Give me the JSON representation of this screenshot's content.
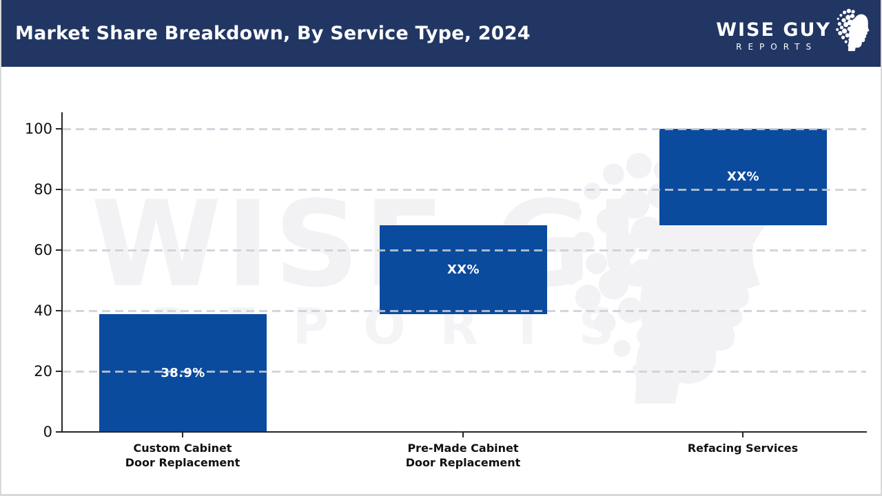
{
  "header": {
    "title": "Market Share Breakdown, By Service Type, 2024",
    "logo": {
      "line1": "WISE GUY",
      "line2": "REPORTS"
    }
  },
  "watermark": {
    "line1": "WISE GUY",
    "line2": "REPORTS"
  },
  "chart_data": {
    "type": "bar",
    "subtype": "waterfall",
    "title": "Market Share Breakdown, By Service Type, 2024",
    "categories": [
      {
        "line1": "Custom Cabinet",
        "line2": "Door Replacement"
      },
      {
        "line1": "Pre-Made Cabinet",
        "line2": "Door Replacement"
      },
      {
        "line1": "Refacing Services",
        "line2": ""
      }
    ],
    "segments": [
      {
        "start": 0,
        "end": 38.9,
        "label": "38.9%"
      },
      {
        "start": 38.9,
        "end": 68.2,
        "label": "XX%"
      },
      {
        "start": 68.2,
        "end": 100,
        "label": "XX%"
      }
    ],
    "ylim": [
      0,
      100
    ],
    "yticks": [
      0,
      20,
      40,
      60,
      80,
      100
    ],
    "ytick_labels": [
      "0",
      "20",
      "40",
      "60",
      "80",
      "100"
    ],
    "bar_color": "#0a4b9e",
    "grid": "horizontal-dashed",
    "legend": "none"
  }
}
